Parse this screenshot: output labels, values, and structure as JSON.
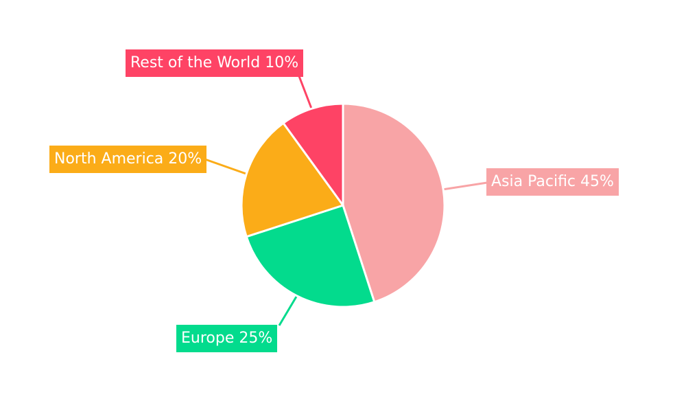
{
  "chart_data": {
    "type": "pie",
    "title": "",
    "categories": [
      "Asia Pacific",
      "Europe",
      "North America",
      "Rest of the World"
    ],
    "values": [
      45,
      25,
      20,
      10
    ],
    "unit": "%",
    "slices": [
      {
        "label": "Asia Pacific",
        "value": 45,
        "display": "Asia Pacific 45%",
        "color": "#F8A4A6"
      },
      {
        "label": "Europe",
        "value": 25,
        "display": "Europe 25%",
        "color": "#03DB8D"
      },
      {
        "label": "North America",
        "value": 20,
        "display": "North America 20%",
        "color": "#FBAC18"
      },
      {
        "label": "Rest of the World",
        "value": 10,
        "display": "Rest of the World 10%",
        "color": "#FE4365"
      }
    ],
    "start_angle_deg": 0,
    "direction": "clockwise",
    "legend": "none",
    "labels": "colored boxes with leader lines, white text",
    "background": "#FFFFFF",
    "gap_color": "#FFFFFF",
    "label_text_color": "#FFFFFF",
    "center": [
      500,
      299
    ],
    "radius": 148
  }
}
